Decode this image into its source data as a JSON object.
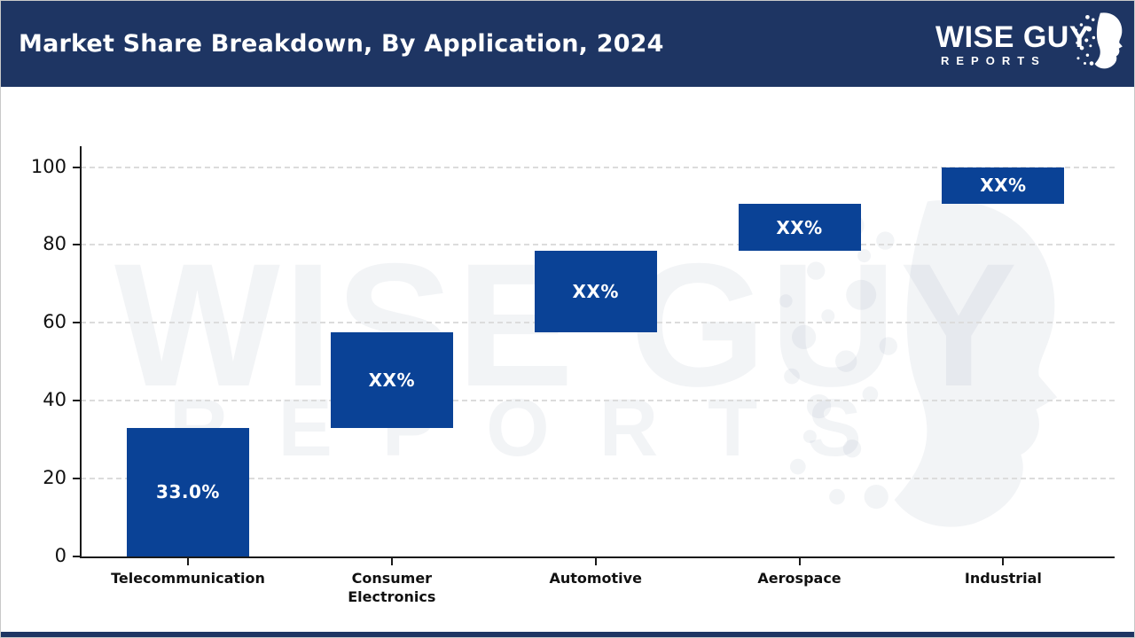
{
  "header": {
    "title": "Market Share Breakdown, By Application, 2024"
  },
  "logo": {
    "line1": "WISE GUY",
    "line2": "REPORTS"
  },
  "watermark": {
    "line1": "WISE GUY",
    "line2": "REPORTS"
  },
  "colors": {
    "header_bg": "#1e3563",
    "bar": "#0a4296",
    "bar_label": "#ffffff",
    "gridline": "#dcdcdc",
    "axis": "#1a1a1a"
  },
  "chart_data": {
    "type": "bar",
    "subtype": "waterfall",
    "title": "Market Share Breakdown, By Application, 2024",
    "categories": [
      "Telecommunication",
      "Consumer Electronics",
      "Automotive",
      "Aerospace",
      "Industrial"
    ],
    "xtick_labels": [
      "Telecommunication",
      "Consumer\nElectronics",
      "Automotive",
      "Aerospace",
      "Industrial"
    ],
    "segments": [
      {
        "category": "Telecommunication",
        "start": 0,
        "end": 33.0,
        "label": "33.0%"
      },
      {
        "category": "Consumer Electronics",
        "start": 33.0,
        "end": 57.5,
        "label": "XX%"
      },
      {
        "category": "Automotive",
        "start": 57.5,
        "end": 78.5,
        "label": "XX%"
      },
      {
        "category": "Aerospace",
        "start": 78.5,
        "end": 90.5,
        "label": "XX%"
      },
      {
        "category": "Industrial",
        "start": 90.5,
        "end": 100.0,
        "label": "XX%"
      }
    ],
    "xlabel": "",
    "ylabel": "",
    "yticks": [
      0,
      20,
      40,
      60,
      80,
      100
    ],
    "ylim": [
      0,
      105
    ],
    "grid": "horizontal-dashed",
    "legend": "none"
  }
}
